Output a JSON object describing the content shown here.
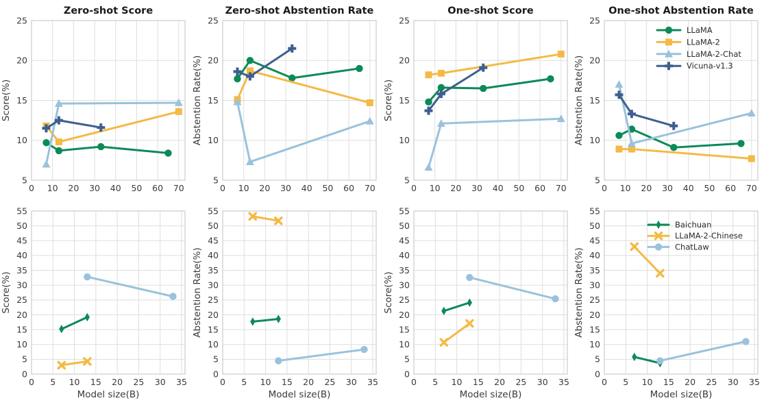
{
  "figure_title": "",
  "colors": {
    "background": "#ffffff",
    "grid": "#dedede",
    "spine": "#cccccc",
    "tick_text": "#3a3a3a",
    "title_text": "#1a1a1a",
    "green": "#0c8a58",
    "orange": "#f3ba45",
    "light_blue": "#99c2dc",
    "dark_blue": "#3e5f8e"
  },
  "series_styles": {
    "LLaMA": {
      "color": "#0c8a58",
      "marker": "circle"
    },
    "LLaMA-2": {
      "color": "#f3ba45",
      "marker": "square"
    },
    "LLaMA-2-Chat": {
      "color": "#99c2dc",
      "marker": "triangle"
    },
    "Vicuna-v1.3": {
      "color": "#3e5f8e",
      "marker": "plus"
    },
    "Baichuan": {
      "color": "#0c8a58",
      "marker": "diamond"
    },
    "LLaMA-2-Chinese": {
      "color": "#f3ba45",
      "marker": "x"
    },
    "ChatLaw": {
      "color": "#99c2dc",
      "marker": "circle"
    }
  },
  "chart_data": [
    {
      "type": "line",
      "title": "Zero-shot Score",
      "ylabel": "Score(%)",
      "xlabel": "",
      "xlim": [
        0,
        73
      ],
      "ylim": [
        5,
        25
      ],
      "xticks": [
        0,
        10,
        20,
        30,
        40,
        50,
        60,
        70
      ],
      "yticks": [
        5,
        10,
        15,
        20,
        25
      ],
      "grid": true,
      "legend": null,
      "series": [
        {
          "name": "LLaMA",
          "x": [
            7,
            13,
            33,
            65
          ],
          "y": [
            9.7,
            8.7,
            9.2,
            8.4
          ]
        },
        {
          "name": "LLaMA-2",
          "x": [
            7,
            13,
            70
          ],
          "y": [
            11.8,
            9.8,
            13.6
          ]
        },
        {
          "name": "LLaMA-2-Chat",
          "x": [
            7,
            13,
            70
          ],
          "y": [
            7.0,
            14.6,
            14.7
          ]
        },
        {
          "name": "Vicuna-v1.3",
          "x": [
            7,
            13,
            33
          ],
          "y": [
            11.5,
            12.5,
            11.6
          ]
        }
      ]
    },
    {
      "type": "line",
      "title": "Zero-shot Abstention Rate",
      "ylabel": "Abstention Rate(%)",
      "xlabel": "",
      "xlim": [
        0,
        73
      ],
      "ylim": [
        5,
        25
      ],
      "xticks": [
        0,
        10,
        20,
        30,
        40,
        50,
        60,
        70
      ],
      "yticks": [
        5,
        10,
        15,
        20,
        25
      ],
      "grid": true,
      "legend": null,
      "series": [
        {
          "name": "LLaMA",
          "x": [
            7,
            13,
            33,
            65
          ],
          "y": [
            17.7,
            20.0,
            17.8,
            19.0
          ]
        },
        {
          "name": "LLaMA-2",
          "x": [
            7,
            13,
            70
          ],
          "y": [
            15.1,
            18.7,
            14.7
          ]
        },
        {
          "name": "LLaMA-2-Chat",
          "x": [
            7,
            13,
            70
          ],
          "y": [
            14.8,
            7.3,
            12.4
          ]
        },
        {
          "name": "Vicuna-v1.3",
          "x": [
            7,
            13,
            33
          ],
          "y": [
            18.6,
            18.0,
            21.5
          ]
        }
      ]
    },
    {
      "type": "line",
      "title": "One-shot Score",
      "ylabel": "Score(%)",
      "xlabel": "",
      "xlim": [
        0,
        73
      ],
      "ylim": [
        5,
        25
      ],
      "xticks": [
        0,
        10,
        20,
        30,
        40,
        50,
        60,
        70
      ],
      "yticks": [
        5,
        10,
        15,
        20,
        25
      ],
      "grid": true,
      "legend": null,
      "series": [
        {
          "name": "LLaMA",
          "x": [
            7,
            13,
            33,
            65
          ],
          "y": [
            14.8,
            16.6,
            16.5,
            17.7
          ]
        },
        {
          "name": "LLaMA-2",
          "x": [
            7,
            13,
            70
          ],
          "y": [
            18.2,
            18.4,
            20.8
          ]
        },
        {
          "name": "LLaMA-2-Chat",
          "x": [
            7,
            13,
            70
          ],
          "y": [
            6.6,
            12.1,
            12.7
          ]
        },
        {
          "name": "Vicuna-v1.3",
          "x": [
            7,
            13,
            33
          ],
          "y": [
            13.7,
            15.8,
            19.1
          ]
        }
      ]
    },
    {
      "type": "line",
      "title": "One-shot Abstention Rate",
      "ylabel": "Abstention Rate(%)",
      "xlabel": "",
      "xlim": [
        0,
        73
      ],
      "ylim": [
        5,
        25
      ],
      "xticks": [
        0,
        10,
        20,
        30,
        40,
        50,
        60,
        70
      ],
      "yticks": [
        5,
        10,
        15,
        20,
        25
      ],
      "grid": true,
      "legend": {
        "items": [
          "LLaMA",
          "LLaMA-2",
          "LLaMA-2-Chat",
          "Vicuna-v1.3"
        ],
        "position": "upper right"
      },
      "series": [
        {
          "name": "LLaMA",
          "x": [
            7,
            13,
            33,
            65
          ],
          "y": [
            10.6,
            11.4,
            9.1,
            9.6
          ]
        },
        {
          "name": "LLaMA-2",
          "x": [
            7,
            13,
            70
          ],
          "y": [
            8.9,
            8.9,
            7.7
          ]
        },
        {
          "name": "LLaMA-2-Chat",
          "x": [
            7,
            13,
            70
          ],
          "y": [
            17.0,
            9.6,
            13.4
          ]
        },
        {
          "name": "Vicuna-v1.3",
          "x": [
            7,
            13,
            33
          ],
          "y": [
            15.7,
            13.3,
            11.8
          ]
        }
      ]
    },
    {
      "type": "line",
      "title": "",
      "ylabel": "Score(%)",
      "xlabel": "Model size(B)",
      "xlim": [
        0,
        35.8
      ],
      "ylim": [
        0,
        55
      ],
      "xticks": [
        0,
        5,
        10,
        15,
        20,
        25,
        30,
        35
      ],
      "yticks": [
        0,
        5,
        10,
        15,
        20,
        25,
        30,
        35,
        40,
        45,
        50,
        55
      ],
      "grid": true,
      "legend": null,
      "series": [
        {
          "name": "Baichuan",
          "x": [
            7,
            13
          ],
          "y": [
            15.2,
            19.2
          ]
        },
        {
          "name": "LLaMA-2-Chinese",
          "x": [
            7,
            13
          ],
          "y": [
            3.0,
            4.3
          ]
        },
        {
          "name": "ChatLaw",
          "x": [
            13,
            33
          ],
          "y": [
            32.8,
            26.2
          ]
        }
      ]
    },
    {
      "type": "line",
      "title": "",
      "ylabel": "Abstention Rate(%)",
      "xlabel": "Model size(B)",
      "xlim": [
        0,
        35.8
      ],
      "ylim": [
        0,
        55
      ],
      "xticks": [
        0,
        5,
        10,
        15,
        20,
        25,
        30,
        35
      ],
      "yticks": [
        0,
        5,
        10,
        15,
        20,
        25,
        30,
        35,
        40,
        45,
        50,
        55
      ],
      "grid": true,
      "legend": null,
      "series": [
        {
          "name": "Baichuan",
          "x": [
            7,
            13
          ],
          "y": [
            17.7,
            18.6
          ]
        },
        {
          "name": "LLaMA-2-Chinese",
          "x": [
            7,
            13
          ],
          "y": [
            53.2,
            51.7
          ]
        },
        {
          "name": "ChatLaw",
          "x": [
            13,
            33
          ],
          "y": [
            4.5,
            8.3
          ]
        }
      ]
    },
    {
      "type": "line",
      "title": "",
      "ylabel": "Score(%)",
      "xlabel": "Model size(B)",
      "xlim": [
        0,
        35.8
      ],
      "ylim": [
        0,
        55
      ],
      "xticks": [
        0,
        5,
        10,
        15,
        20,
        25,
        30,
        35
      ],
      "yticks": [
        0,
        5,
        10,
        15,
        20,
        25,
        30,
        35,
        40,
        45,
        50,
        55
      ],
      "grid": true,
      "legend": null,
      "series": [
        {
          "name": "Baichuan",
          "x": [
            7,
            13
          ],
          "y": [
            21.3,
            24.1
          ]
        },
        {
          "name": "LLaMA-2-Chinese",
          "x": [
            7,
            13
          ],
          "y": [
            10.7,
            17.1
          ]
        },
        {
          "name": "ChatLaw",
          "x": [
            13,
            33
          ],
          "y": [
            32.6,
            25.4
          ]
        }
      ]
    },
    {
      "type": "line",
      "title": "",
      "ylabel": "Abstention Rate(%)",
      "xlabel": "Model size(B)",
      "xlim": [
        0,
        35.8
      ],
      "ylim": [
        0,
        55
      ],
      "xticks": [
        0,
        5,
        10,
        15,
        20,
        25,
        30,
        35
      ],
      "yticks": [
        0,
        5,
        10,
        15,
        20,
        25,
        30,
        35,
        40,
        45,
        50,
        55
      ],
      "grid": true,
      "legend": {
        "items": [
          "Baichuan",
          "LLaMA-2-Chinese",
          "ChatLaw"
        ],
        "position": "upper right"
      },
      "series": [
        {
          "name": "Baichuan",
          "x": [
            7,
            13
          ],
          "y": [
            5.8,
            3.7
          ]
        },
        {
          "name": "LLaMA-2-Chinese",
          "x": [
            7,
            13
          ],
          "y": [
            43.0,
            34.0
          ]
        },
        {
          "name": "ChatLaw",
          "x": [
            13,
            33
          ],
          "y": [
            4.5,
            11.0
          ]
        }
      ]
    }
  ]
}
